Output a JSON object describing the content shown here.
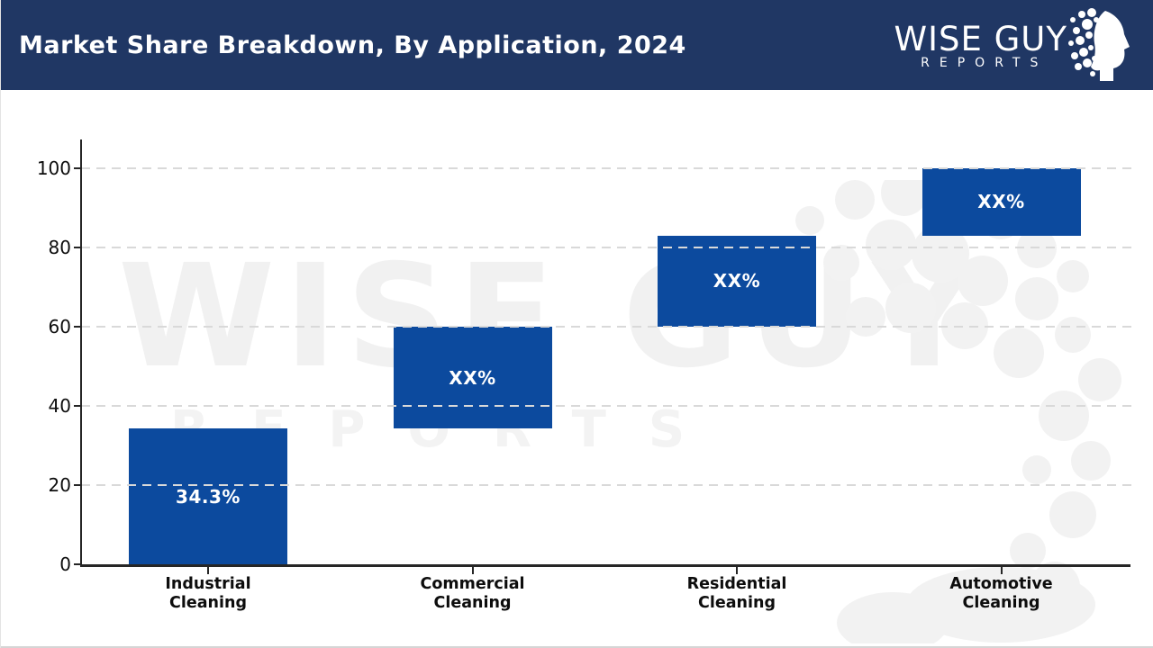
{
  "header": {
    "title": "Market Share Breakdown, By Application, 2024",
    "logo": {
      "line1": "WISE GUY",
      "line2": "REPORTS"
    }
  },
  "watermark": {
    "line1": "WISE GUY",
    "line2": "REPORTS"
  },
  "colors": {
    "header_bg": "#203764",
    "bar": "#0C4A9E",
    "grid": "#D9D9D9",
    "axis": "#262626",
    "watermark": "#F1F1F1"
  },
  "chart_data": {
    "type": "bar",
    "variant": "waterfall",
    "title": "Market Share Breakdown, By Application, 2024",
    "ylim": [
      0,
      100
    ],
    "yticks": [
      0,
      20,
      40,
      60,
      80,
      100
    ],
    "grid": "horizontal-dashed",
    "legend": "none",
    "categories": [
      "Industrial Cleaning",
      "Commercial Cleaning",
      "Residential Cleaning",
      "Automotive Cleaning"
    ],
    "bars": [
      {
        "category_line1": "Industrial",
        "category_line2": "Cleaning",
        "start": 0,
        "end": 34.3,
        "label": "34.3%"
      },
      {
        "category_line1": "Commercial",
        "category_line2": "Cleaning",
        "start": 34.3,
        "end": 60,
        "label": "XX%"
      },
      {
        "category_line1": "Residential",
        "category_line2": "Cleaning",
        "start": 60,
        "end": 83,
        "label": "XX%"
      },
      {
        "category_line1": "Automotive",
        "category_line2": "Cleaning",
        "start": 83,
        "end": 100,
        "label": "XX%"
      }
    ]
  }
}
